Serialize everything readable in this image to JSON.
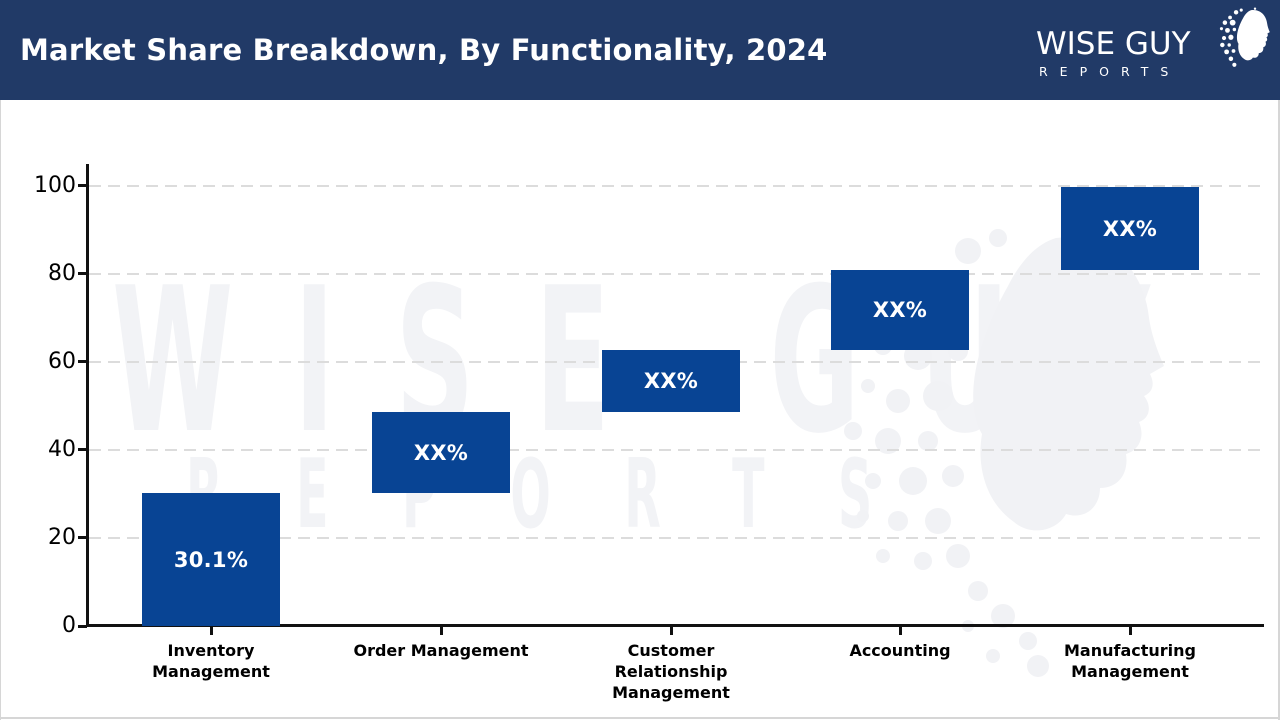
{
  "header": {
    "title": "Market Share Breakdown, By Functionality, 2024",
    "logo": {
      "brand": "WISE GUY",
      "sub": "REPORTS"
    }
  },
  "watermark": {
    "brand": "WISE GUY",
    "sub": "REPORTS"
  },
  "chart_data": {
    "type": "bar",
    "variant": "waterfall",
    "title": "Market Share Breakdown, By Functionality, 2024",
    "categories": [
      "Inventory Management",
      "Order Management",
      "Customer Relationship Management",
      "Accounting",
      "Manufacturing Management"
    ],
    "category_label_lines": [
      [
        "Inventory",
        "Management"
      ],
      [
        "Order Management"
      ],
      [
        "Customer",
        "Relationship",
        "Management"
      ],
      [
        "Accounting"
      ],
      [
        "Manufacturing",
        "Management"
      ]
    ],
    "segments": [
      {
        "category": "Inventory Management",
        "start": 0,
        "end": 30.1,
        "label": "30.1%"
      },
      {
        "category": "Order Management",
        "start": 30.1,
        "end": 48.5,
        "label": "XX%"
      },
      {
        "category": "Customer Relationship Management",
        "start": 48.5,
        "end": 62.7,
        "label": "XX%"
      },
      {
        "category": "Accounting",
        "start": 62.7,
        "end": 80.8,
        "label": "XX%"
      },
      {
        "category": "Manufacturing Management",
        "start": 80.8,
        "end": 99.6,
        "label": "XX%"
      }
    ],
    "xlabel": "",
    "ylabel": "",
    "ylim": [
      0,
      100
    ],
    "yticks": [
      0,
      20,
      40,
      60,
      80,
      100
    ],
    "grid": "horizontal-dashed",
    "legend": null,
    "colors": {
      "bar": "#084494",
      "bar_label": "#ffffff",
      "axis": "#111111",
      "grid": "#dcdcdc",
      "header_bg": "#213a67",
      "watermark": "#f2f3f6"
    }
  }
}
